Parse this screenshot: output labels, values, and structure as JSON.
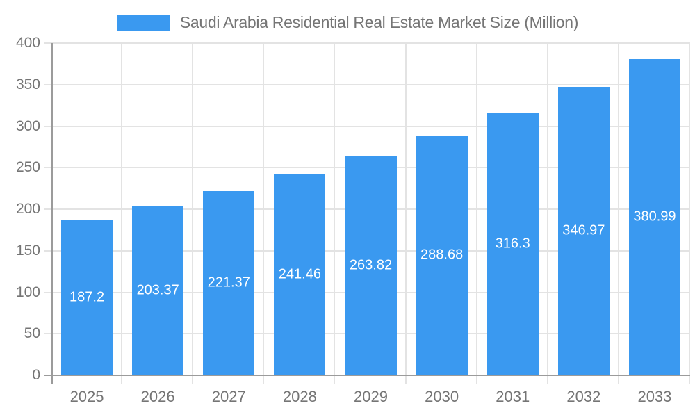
{
  "chart_data": {
    "type": "bar",
    "title": "Saudi Arabia Residential Real Estate Market Size (Million)",
    "categories": [
      "2025",
      "2026",
      "2027",
      "2028",
      "2029",
      "2030",
      "2031",
      "2032",
      "2033"
    ],
    "values": [
      187.2,
      203.37,
      221.37,
      241.46,
      263.82,
      288.68,
      316.3,
      346.97,
      380.99
    ],
    "value_labels": [
      "187.2",
      "203.37",
      "221.37",
      "241.46",
      "263.82",
      "288.68",
      "316.3",
      "346.97",
      "380.99"
    ],
    "xlabel": "",
    "ylabel": "",
    "ylim": [
      0,
      400
    ],
    "yticks": [
      0,
      50,
      100,
      150,
      200,
      250,
      300,
      350,
      400
    ],
    "grid": true,
    "legend_position": "top",
    "value_label_position": "inside-center",
    "colors": {
      "bar": "#3A99F0",
      "axis_line": "#9B9B9B",
      "gridline": "#E3E3E3",
      "tick_text": "#757575",
      "value_text": "#FFFFFF",
      "background": "#FFFFFF"
    }
  }
}
